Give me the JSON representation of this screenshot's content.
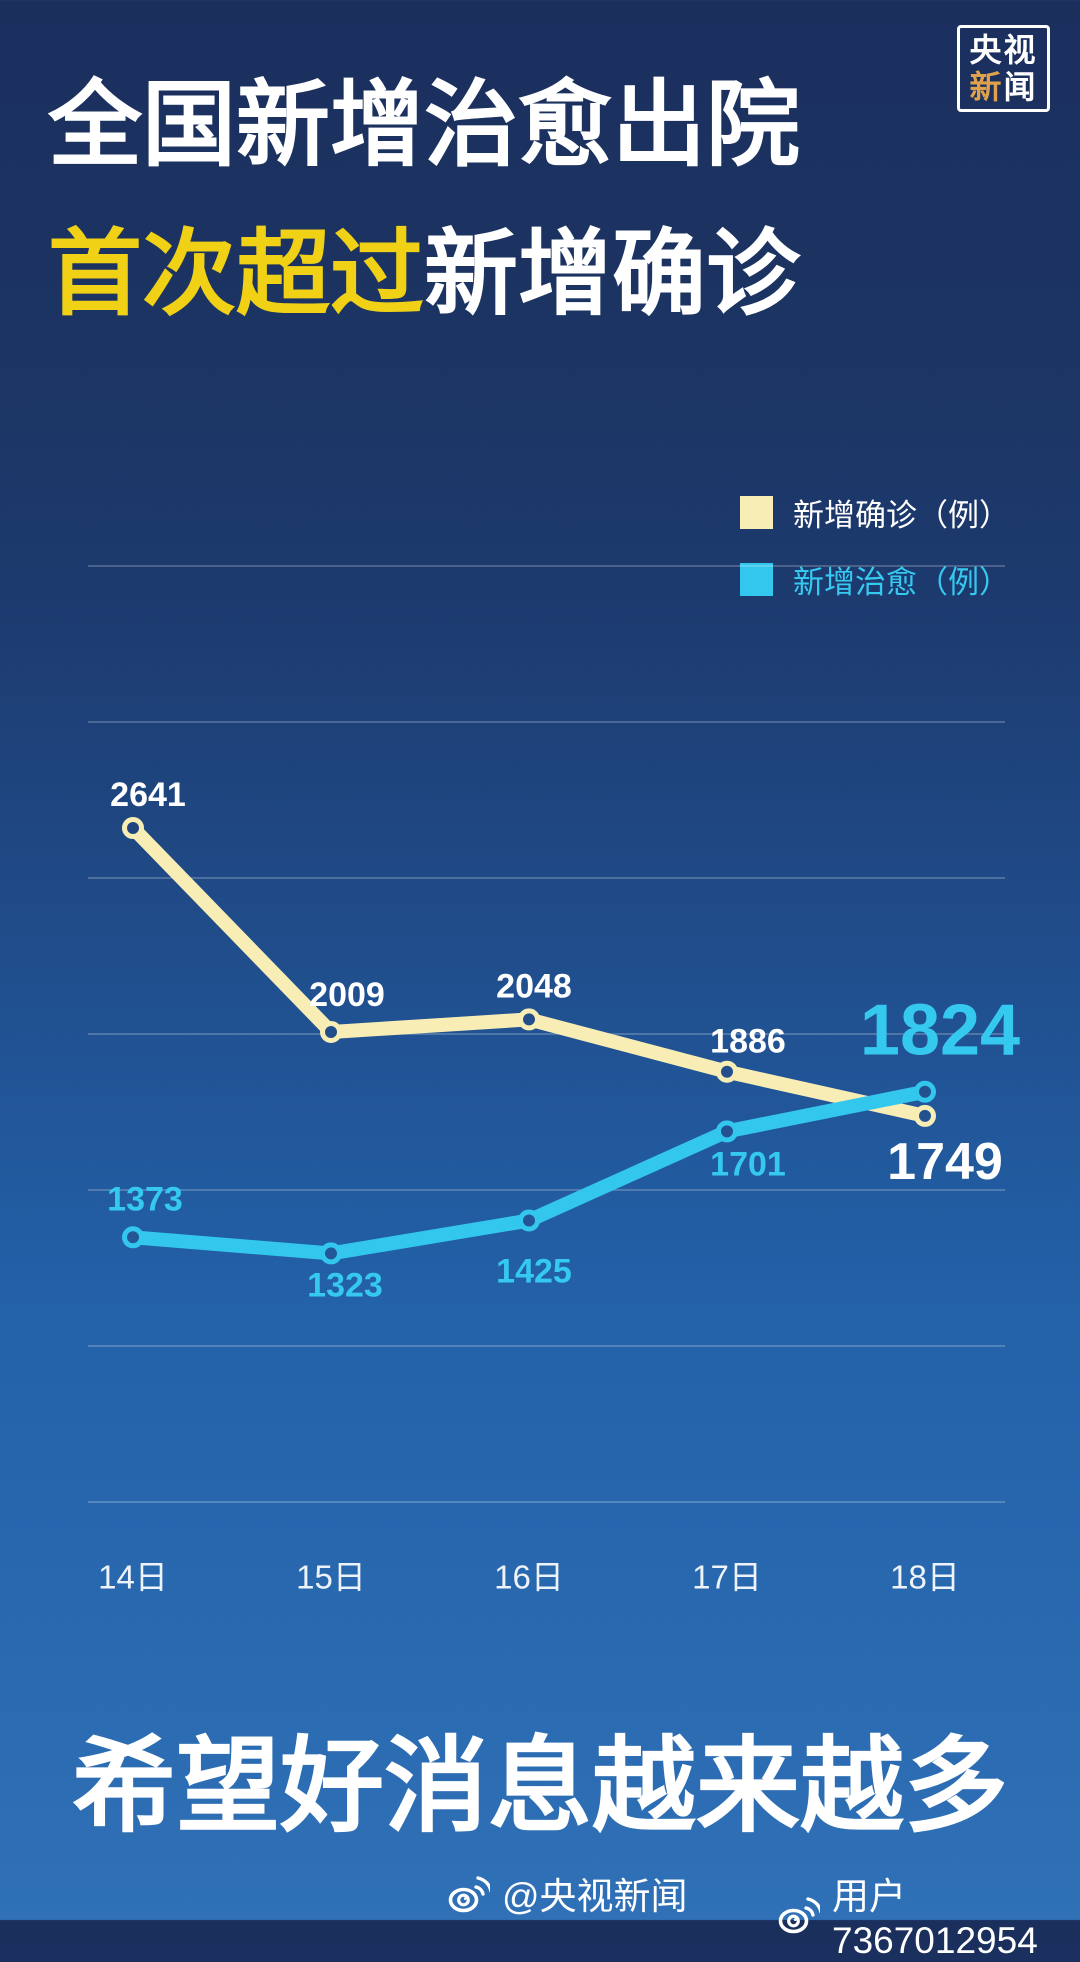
{
  "logo": {
    "line1": "央视",
    "line2_accent": "新",
    "line2_rest": "闻"
  },
  "headline": {
    "line1": "全国新增治愈出院",
    "line2_highlight": "首次超过",
    "line2_rest": "新增确诊"
  },
  "legend": {
    "confirmed_label": "新增确诊（例）",
    "cured_label": "新增治愈（例）"
  },
  "chart_data": {
    "type": "line",
    "categories": [
      "14日",
      "15日",
      "16日",
      "17日",
      "18日"
    ],
    "series": [
      {
        "name": "新增确诊（例）",
        "values": [
          2641,
          2009,
          2048,
          1886,
          1749
        ],
        "color": "#F8EDB4",
        "label_color": "#FFFFFF"
      },
      {
        "name": "新增治愈（例）",
        "values": [
          1373,
          1323,
          1425,
          1701,
          1824
        ],
        "color": "#33C7EE",
        "label_color": "#35C9F0"
      }
    ],
    "highlight": {
      "cured_last": "1824",
      "confirmed_last": "1749"
    },
    "title": "全国新增治愈出院首次超过新增确诊",
    "xlabel": "",
    "ylabel": "",
    "ylim": [
      540,
      3450
    ],
    "grid": true,
    "legend_position": "top-right"
  },
  "slogan": "希望好消息越来越多",
  "footer": {
    "left_handle": "@央视新闻",
    "right_handle": "用户7367012954"
  },
  "colors": {
    "bg_top": "#1B2F5D",
    "bg_bottom": "#2F70B6",
    "confirmed": "#F8EDB4",
    "cured": "#33C7EE",
    "headline_highlight": "#F0D116",
    "logo_accent": "#DFA14C",
    "grid_line": "rgba(255,255,255,0.28)",
    "axis_text": "rgba(255,255,255,0.92)"
  }
}
